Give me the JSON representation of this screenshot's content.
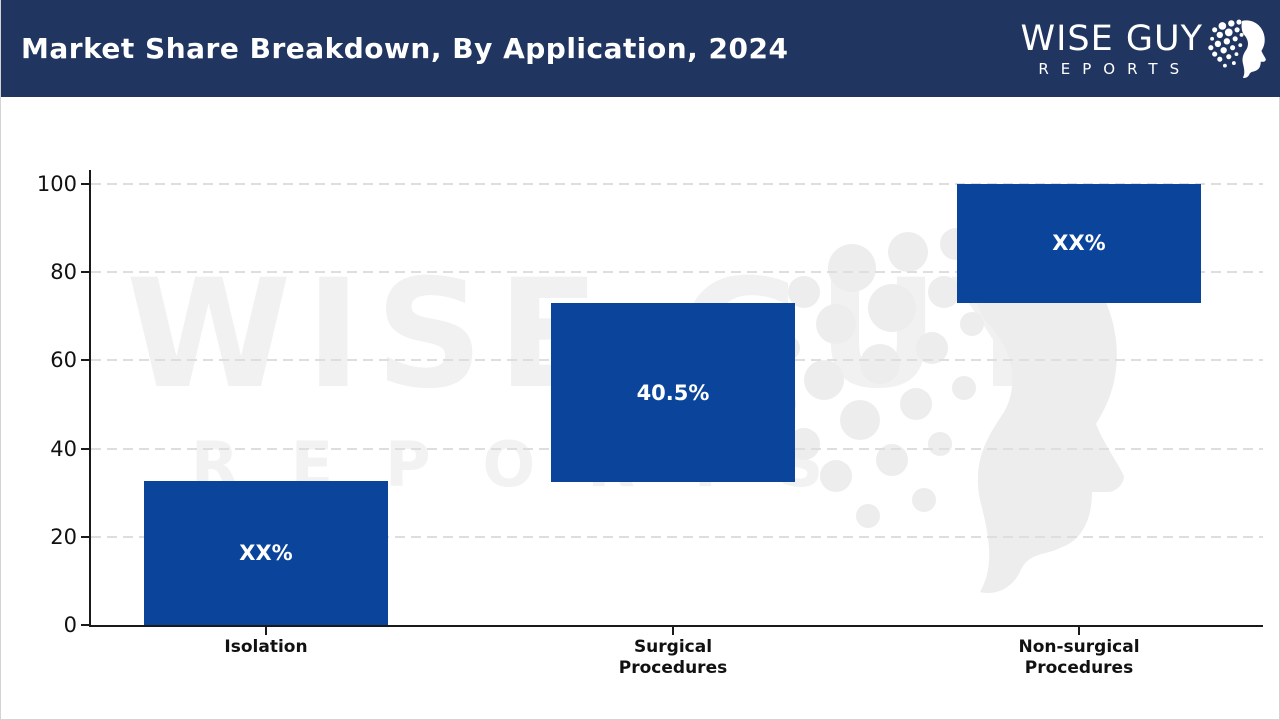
{
  "header": {
    "title": "Market Share Breakdown, By Application, 2024",
    "bg_color": "#20355f",
    "logo": {
      "line1": "WISE GUY",
      "line2": "REPORTS"
    }
  },
  "watermark": {
    "line1": "WISE GUY",
    "line2": "REPORTS"
  },
  "chart_data": {
    "type": "bar",
    "subtype": "floating-waterfall",
    "title": "Market Share Breakdown, By Application, 2024",
    "categories": [
      "Isolation",
      "Surgical Procedures",
      "Non-surgical Procedures"
    ],
    "bars": [
      {
        "category_lines": [
          "Isolation"
        ],
        "start": 0,
        "end": 32.6,
        "label": "XX%"
      },
      {
        "category_lines": [
          "Surgical",
          "Procedures"
        ],
        "start": 32.4,
        "end": 72.9,
        "label": "40.5%"
      },
      {
        "category_lines": [
          "Non-surgical",
          "Procedures"
        ],
        "start": 73,
        "end": 100,
        "label": "XX%"
      }
    ],
    "yticks": [
      0,
      20,
      40,
      60,
      80,
      100
    ],
    "ylim": [
      0,
      103.6
    ],
    "xlabel": "",
    "ylabel": "",
    "grid": "horizontal-dashed",
    "legend": "none",
    "colors": {
      "bar": "#0b449b",
      "bar_label": "#ffffff",
      "axis": "#1a1a1a",
      "grid": "#dedede",
      "header_bg": "#20355f",
      "watermark": "#f1f1f1"
    }
  }
}
